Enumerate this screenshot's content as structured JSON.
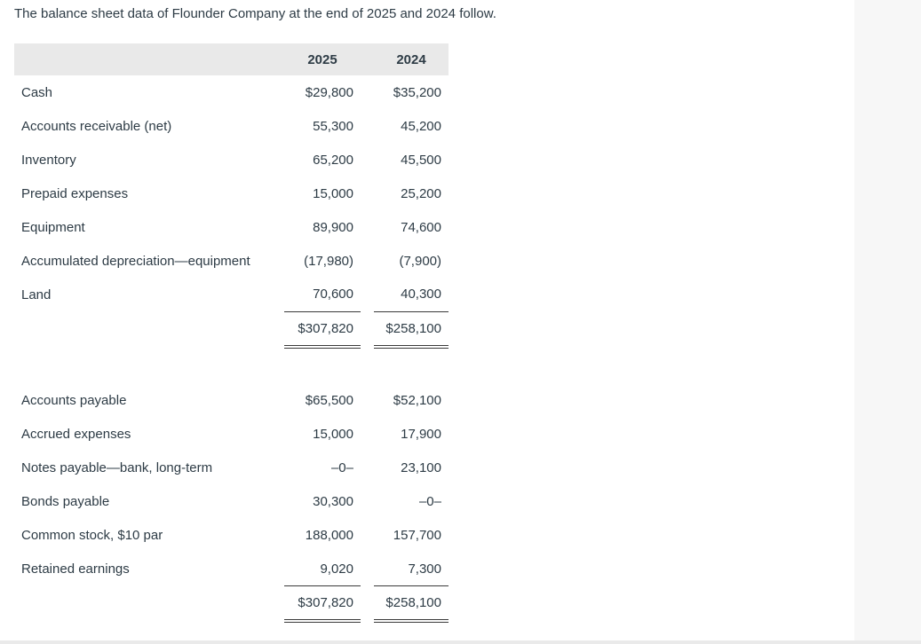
{
  "page": {
    "intro": "The balance sheet data of Flounder Company at the end of 2025 and 2024 follow."
  },
  "table": {
    "headers": {
      "col2025": "2025",
      "col2024": "2024"
    },
    "assets": {
      "rows": [
        {
          "label": "Cash",
          "y2025": "$29,800",
          "y2024": "$35,200"
        },
        {
          "label": "Accounts receivable (net)",
          "y2025": "55,300",
          "y2024": "45,200"
        },
        {
          "label": "Inventory",
          "y2025": "65,200",
          "y2024": "45,500"
        },
        {
          "label": "Prepaid expenses",
          "y2025": "15,000",
          "y2024": "25,200"
        },
        {
          "label": "Equipment",
          "y2025": "89,900",
          "y2024": "74,600"
        },
        {
          "label": "Accumulated depreciation—equipment",
          "y2025": "(17,980)",
          "y2024": "(7,900)"
        },
        {
          "label": "Land",
          "y2025": "70,600",
          "y2024": "40,300"
        }
      ],
      "total": {
        "y2025": "$307,820",
        "y2024": "$258,100"
      }
    },
    "liabilities": {
      "rows": [
        {
          "label": "Accounts payable",
          "y2025": "$65,500",
          "y2024": "$52,100"
        },
        {
          "label": "Accrued expenses",
          "y2025": "15,000",
          "y2024": "17,900"
        },
        {
          "label": "Notes payable—bank, long-term",
          "y2025": "–0–",
          "y2024": "23,100"
        },
        {
          "label": "Bonds payable",
          "y2025": "30,300",
          "y2024": "–0–"
        },
        {
          "label": "Common stock, $10 par",
          "y2025": "188,000",
          "y2024": "157,700"
        },
        {
          "label": "Retained earnings",
          "y2025": "9,020",
          "y2024": "7,300"
        }
      ],
      "total": {
        "y2025": "$307,820",
        "y2024": "$258,100"
      }
    }
  }
}
